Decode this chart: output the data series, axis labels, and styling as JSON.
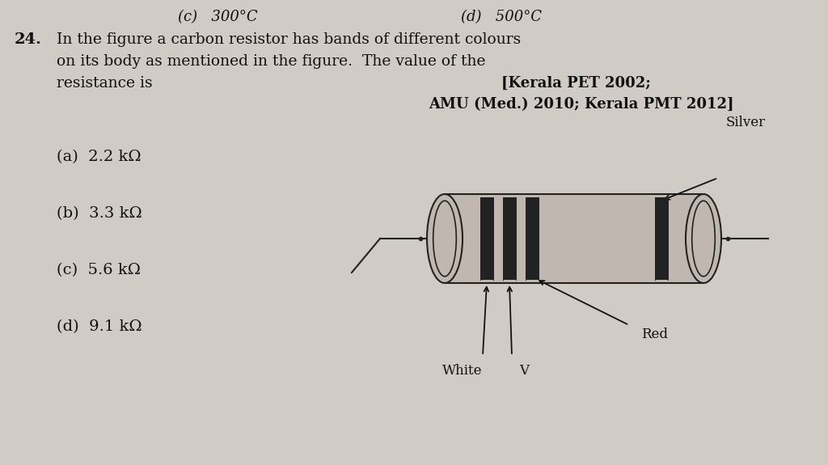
{
  "bg_color": "#d0cbc4",
  "title_num": "24.",
  "title_line1": "In the figure a carbon resistor has bands of different colours",
  "title_line2": "on its body as mentioned in the figure.  The value of the",
  "title_line3": "resistance is",
  "ref_line1": "[Kerala PET 2002;",
  "ref_line2": "AMU (Med.) 2010; Kerala PMT 2012]",
  "options": [
    "(a)  2.2 kΩ",
    "(b)  3.3 kΩ",
    "(c)  5.6 kΩ",
    "(d)  9.1 kΩ"
  ],
  "header_left": "(c)   300°C",
  "header_right": "(d)   500°C",
  "label_white": "White",
  "label_v": "V",
  "label_red": "Red",
  "label_silver": "Silver",
  "resistor_body_color": "#c0b8b0",
  "resistor_outline_color": "#222222",
  "band_color": "#222222"
}
